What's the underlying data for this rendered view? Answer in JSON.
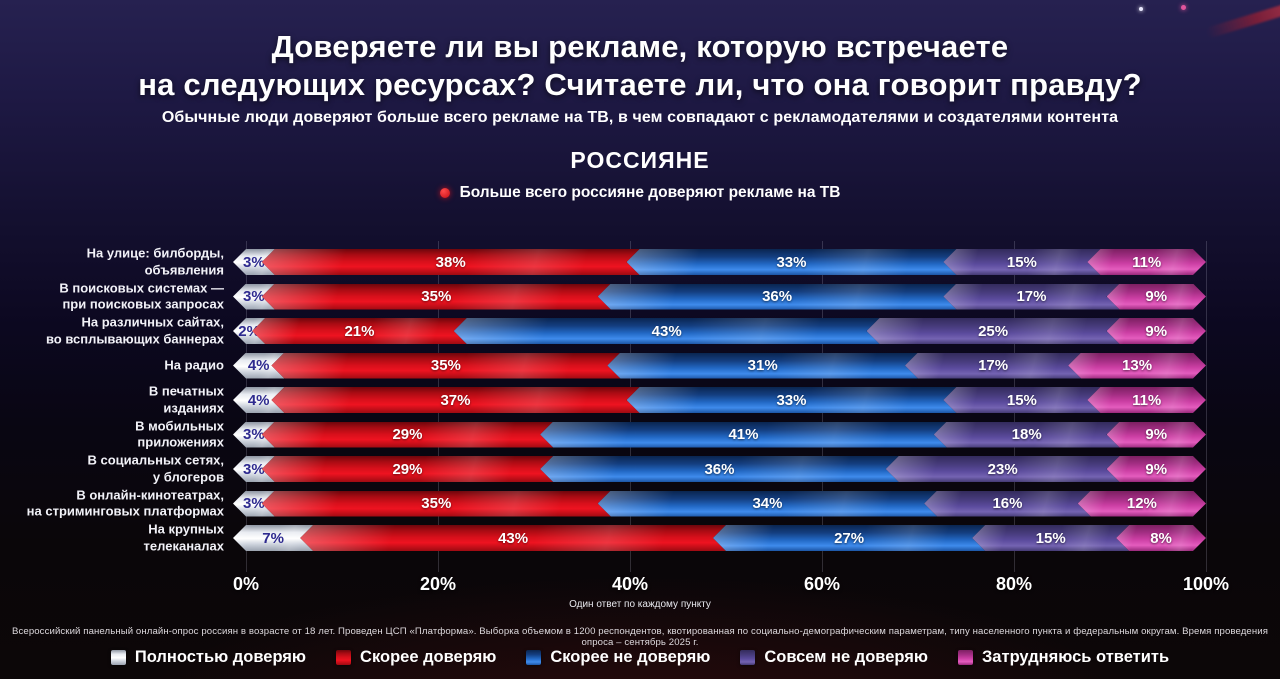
{
  "header": {
    "title_line1": "Доверяете ли вы рекламе, которую встречаете",
    "title_line2": "на следующих ресурсах? Считаете ли, что она говорит правду?",
    "subtitle": "Обычные люди доверяют больше всего рекламе на ТВ, в чем совпадают с рекламодателями и создателями контента",
    "section_title": "РОССИЯНЕ",
    "highlight_note": "Больше всего россияне доверяют рекламе на ТВ",
    "highlight_dot_color": "#d8101b"
  },
  "chart_data": {
    "type": "bar",
    "orientation": "horizontal-stacked",
    "unit": "%",
    "xlim": [
      0,
      100
    ],
    "x_ticks": [
      "0%",
      "20%",
      "40%",
      "60%",
      "80%",
      "100%"
    ],
    "grid": true,
    "legend_position": "bottom",
    "axis_note": "Один ответ по каждому пункту",
    "categories": [
      "На улице: билборды,\nобъявления",
      "В поисковых системах —\nпри поисковых запросах",
      "На различных сайтах,\nво всплывающих баннерах",
      "На радио",
      "В печатных\nизданиях",
      "В мобильных\nприложениях",
      "В социальных сетях,\nу блогеров",
      "В онлайн-кинотеатрах,\nна стриминговых платформах",
      "На крупных\nтелеканалах"
    ],
    "series": [
      {
        "name": "Полностью доверяю",
        "color": "#e3e7ee",
        "values": [
          3,
          3,
          2,
          4,
          4,
          3,
          3,
          3,
          7
        ]
      },
      {
        "name": "Скорее доверяю",
        "color": "#d8101b",
        "values": [
          38,
          35,
          21,
          35,
          37,
          29,
          29,
          35,
          43
        ]
      },
      {
        "name": "Скорее не доверяю",
        "color": "#2a72d2",
        "values": [
          33,
          36,
          43,
          31,
          33,
          41,
          36,
          34,
          27
        ]
      },
      {
        "name": "Совсем не доверяю",
        "color": "#5a4a9c",
        "values": [
          15,
          17,
          25,
          17,
          15,
          18,
          23,
          16,
          15
        ]
      },
      {
        "name": "Затрудняюсь ответить",
        "color": "#cc3fa4",
        "values": [
          11,
          9,
          9,
          13,
          11,
          9,
          9,
          12,
          8
        ]
      }
    ]
  },
  "footnote": "Всероссийский панельный онлайн-опрос россиян в возрасте от 18 лет.  Проведен ЦСП «Платформа». Выборка объемом в 1200 респондентов, квотированная по социально-демографическим параметрам, типу населенного пункта и федеральным округам. Время проведения опроса – сентябрь 2025 г."
}
